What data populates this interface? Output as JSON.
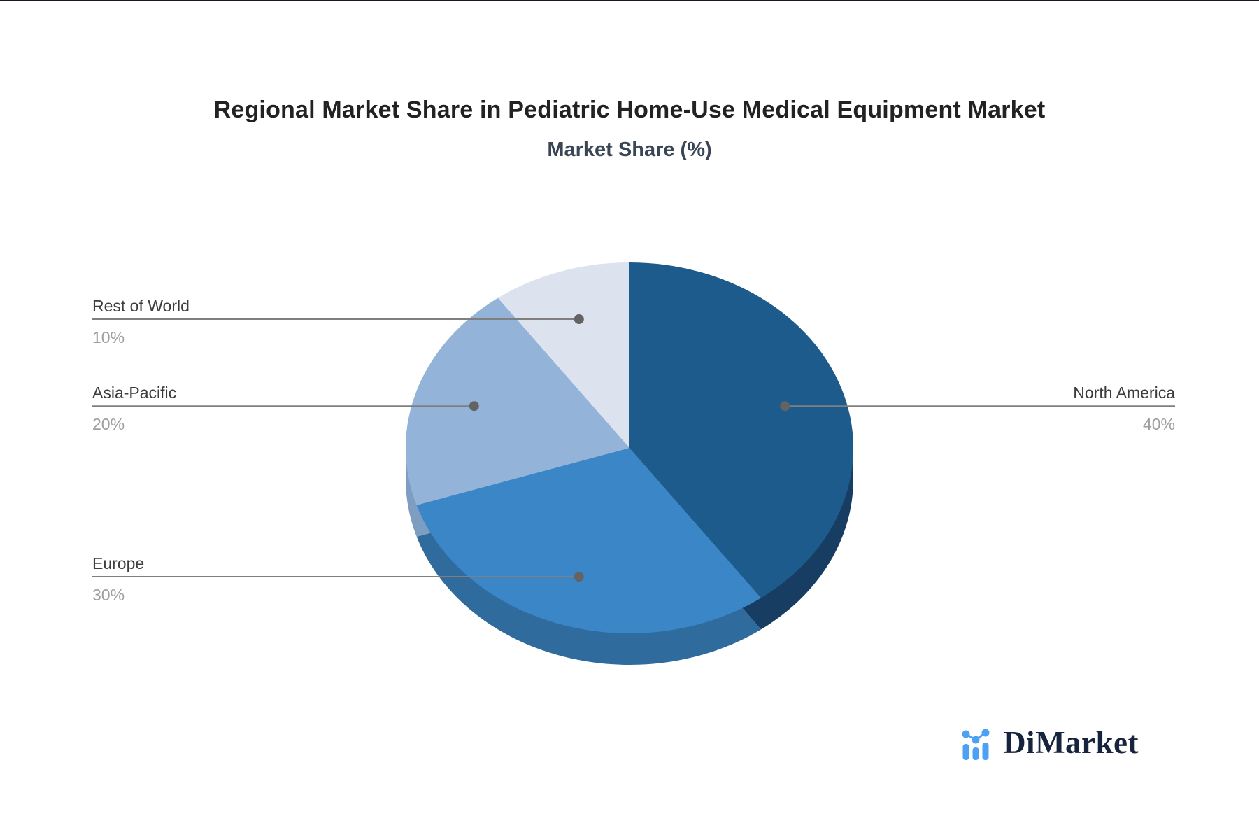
{
  "header": {
    "title": "Regional Market Share in Pediatric Home-Use Medical Equipment Market",
    "subtitle": "Market Share (%)"
  },
  "chart_data": {
    "type": "pie",
    "title": "Regional Market Share in Pediatric Home-Use Medical Equipment Market",
    "subtitle": "Market Share (%)",
    "unit": "%",
    "effect_3d": true,
    "start_angle_deg": 0,
    "direction": "clockwise",
    "legend_position": "none",
    "slices": [
      {
        "label": "North America",
        "value": 40,
        "pct_label": "40%",
        "color": "#1e5b8d",
        "side_color": "#173e62",
        "label_side": "right"
      },
      {
        "label": "Europe",
        "value": 30,
        "pct_label": "30%",
        "color": "#3a86c6",
        "side_color": "#2f6b9d",
        "label_side": "left"
      },
      {
        "label": "Asia-Pacific",
        "value": 20,
        "pct_label": "20%",
        "color": "#93b4d8",
        "side_color": "#7e9ec1",
        "label_side": "left"
      },
      {
        "label": "Rest of World",
        "value": 10,
        "pct_label": "10%",
        "color": "#dce3ef",
        "side_color": "#c2ccdd",
        "label_side": "left"
      }
    ],
    "leader_line_color": "#7f7f7f",
    "leader_dot_color": "#636363"
  },
  "branding": {
    "name": "DiMarket",
    "icon": "bar-line-chart-icon",
    "icon_color": "#4ca1f4",
    "text_color": "#16243d"
  }
}
